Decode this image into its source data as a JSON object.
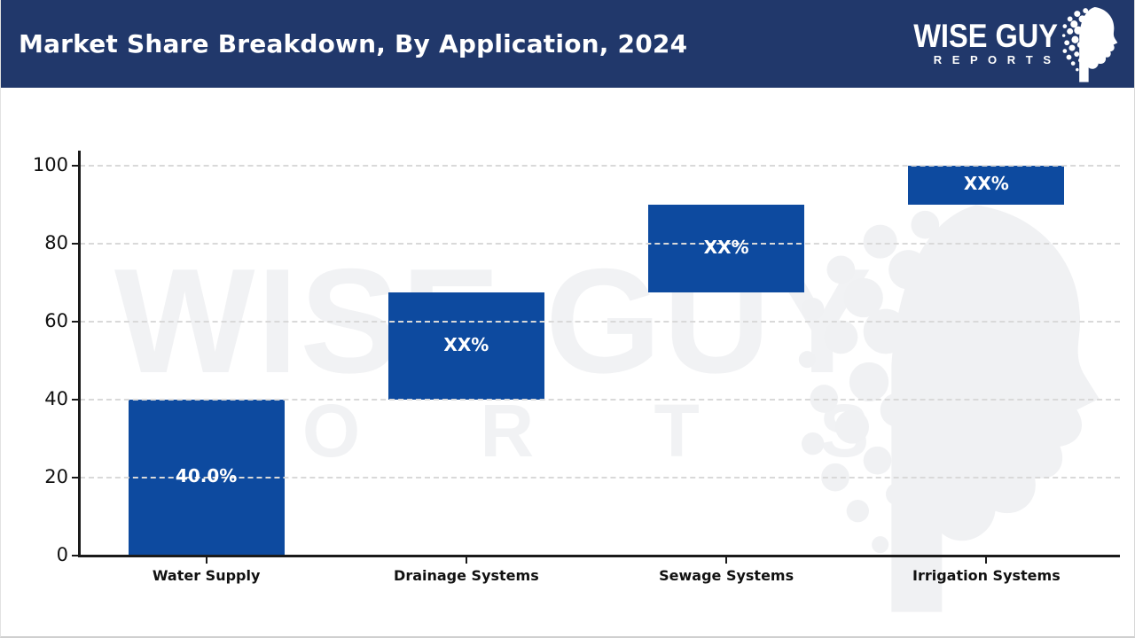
{
  "header": {
    "title": "Market Share Breakdown, By Application, 2024",
    "logo": {
      "name": "WISE GUY",
      "tagline": "R E P O R T S"
    }
  },
  "watermark": {
    "line1": "WISE GUY",
    "line2": "P O R T S"
  },
  "chart_data": {
    "type": "bar",
    "subtype": "floating-waterfall",
    "title": "Market Share Breakdown, By Application, 2024",
    "categories": [
      "Water Supply",
      "Drainage Systems",
      "Sewage Systems",
      "Irrigation Systems"
    ],
    "segments": [
      {
        "category": "Water Supply",
        "start": 0,
        "end": 40,
        "label": "40.0%"
      },
      {
        "category": "Drainage Systems",
        "start": 40,
        "end": 67.5,
        "label": "XX%"
      },
      {
        "category": "Sewage Systems",
        "start": 67.5,
        "end": 90,
        "label": "XX%"
      },
      {
        "category": "Irrigation Systems",
        "start": 90,
        "end": 100,
        "label": "XX%"
      }
    ],
    "yticks": [
      0,
      20,
      40,
      60,
      80,
      100
    ],
    "ylim": [
      0,
      104
    ],
    "xlabel": "",
    "ylabel": "",
    "grid": "horizontal-dashed",
    "legend": "none",
    "bar_color": "#0d4a9f",
    "bar_label_color": "#ffffff"
  },
  "colors": {
    "header_bg": "#21386b",
    "accent_blue": "#0d4a9f",
    "page_bg": "#ffffff",
    "grid": "#d9d9d9",
    "axis": "#1a1a1a",
    "watermark": "#f0f1f3"
  }
}
